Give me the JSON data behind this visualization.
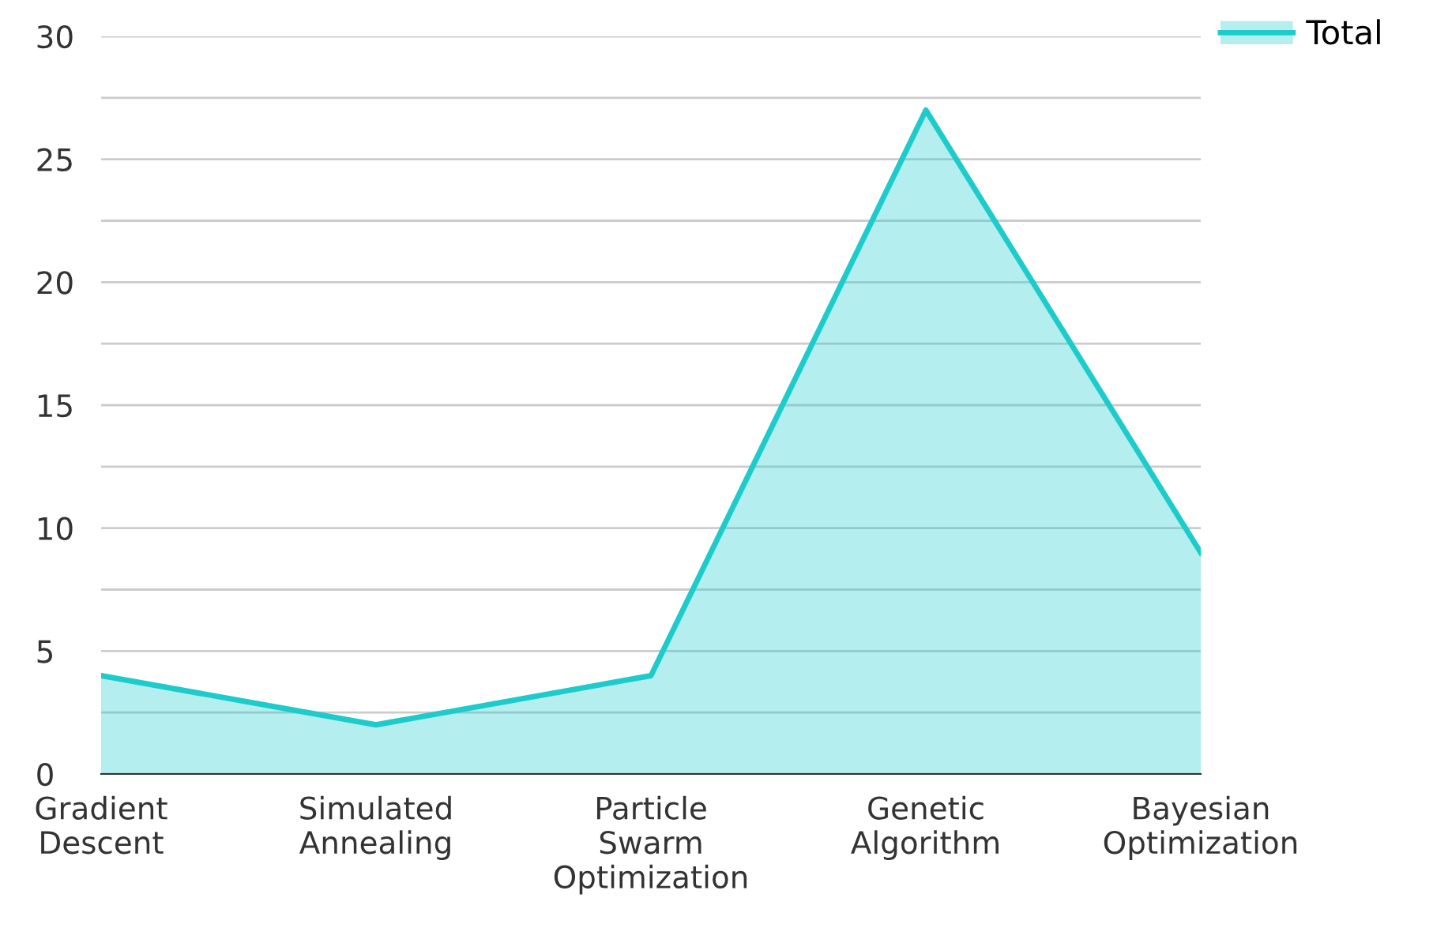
{
  "chart_data": {
    "type": "area",
    "categories": [
      "Gradient Descent",
      "Simulated Annealing",
      "Particle Swarm Optimization",
      "Genetic Algorithm",
      "Bayesian Optimization"
    ],
    "series": [
      {
        "name": "Total",
        "color": "#1ecbcb",
        "values": [
          4,
          2,
          4,
          27,
          9
        ]
      }
    ],
    "ylim": [
      0,
      30
    ],
    "yticks": [
      0,
      {
        "value": 2.5,
        "label": null
      },
      5,
      {
        "value": 7.5,
        "label": null
      },
      10,
      {
        "value": 12.5,
        "label": null
      },
      15,
      {
        "value": 17.5,
        "label": null
      },
      20,
      {
        "value": 22.5,
        "label": null
      },
      25,
      {
        "value": 27.5,
        "label": null
      },
      30
    ],
    "grid": "y",
    "legend": "top right"
  }
}
